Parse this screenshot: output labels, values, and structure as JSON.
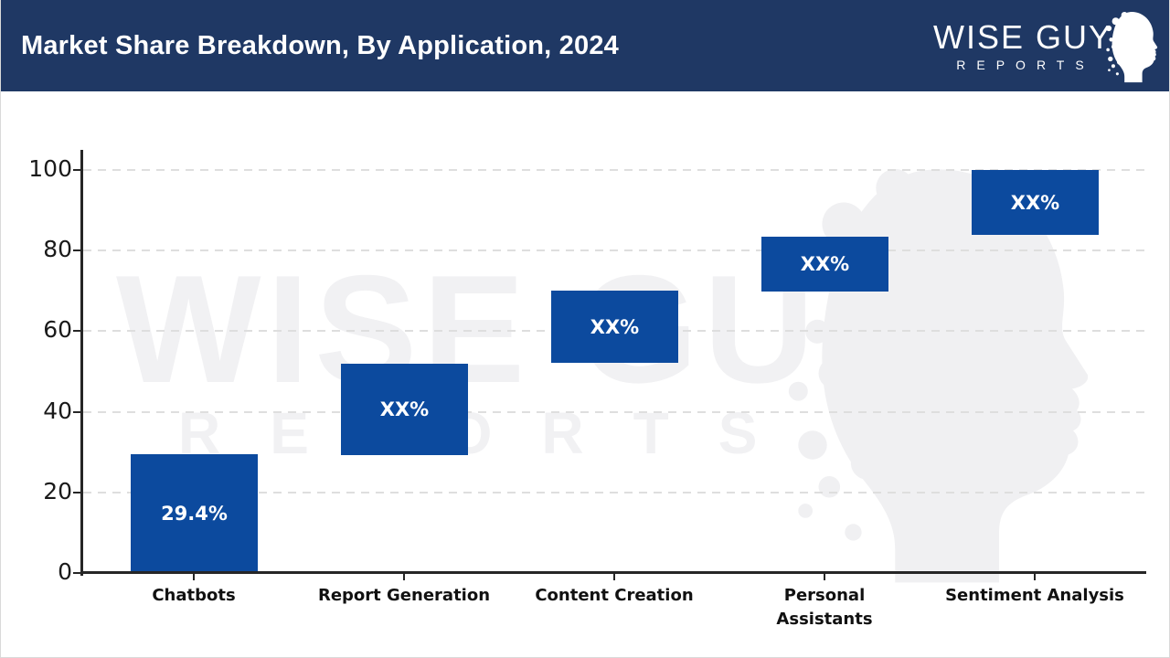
{
  "header": {
    "title": "Market Share Breakdown, By Application, 2024",
    "logo": {
      "line1": "WISE GUY",
      "line2": "REPORTS"
    }
  },
  "watermark": {
    "line1": "WISE GUY",
    "line2": "REPORTS"
  },
  "colors": {
    "header_background": "#1f3864",
    "bar_fill": "#0c4a9e",
    "bar_label_text": "#ffffff",
    "axis": "#262626",
    "gridline": "#dedede",
    "watermark": "#f1f1f3",
    "page_border": "#d9d9d9"
  },
  "chart_data": {
    "type": "bar",
    "subtype": "waterfall",
    "title": "Market Share Breakdown, By Application, 2024",
    "categories": [
      "Chatbots",
      "Report Generation",
      "Content Creation",
      "Personal\nAssistants",
      "Sentiment Analysis"
    ],
    "segments": [
      {
        "category": "Chatbots",
        "label": "29.4%",
        "start": 0,
        "end": 29.4
      },
      {
        "category": "Report Generation",
        "label": "XX%",
        "start": 29.4,
        "end": 52
      },
      {
        "category": "Content Creation",
        "label": "XX%",
        "start": 52,
        "end": 70
      },
      {
        "category": "Personal Assistants",
        "label": "XX%",
        "start": 70,
        "end": 83.5
      },
      {
        "category": "Sentiment Analysis",
        "label": "XX%",
        "start": 84,
        "end": 100
      }
    ],
    "yticks": [
      0,
      20,
      40,
      60,
      80,
      100
    ],
    "ylim": [
      0,
      105
    ],
    "xlabel": "",
    "ylabel": "",
    "grid": "horizontal-dashed",
    "legend": "none"
  }
}
